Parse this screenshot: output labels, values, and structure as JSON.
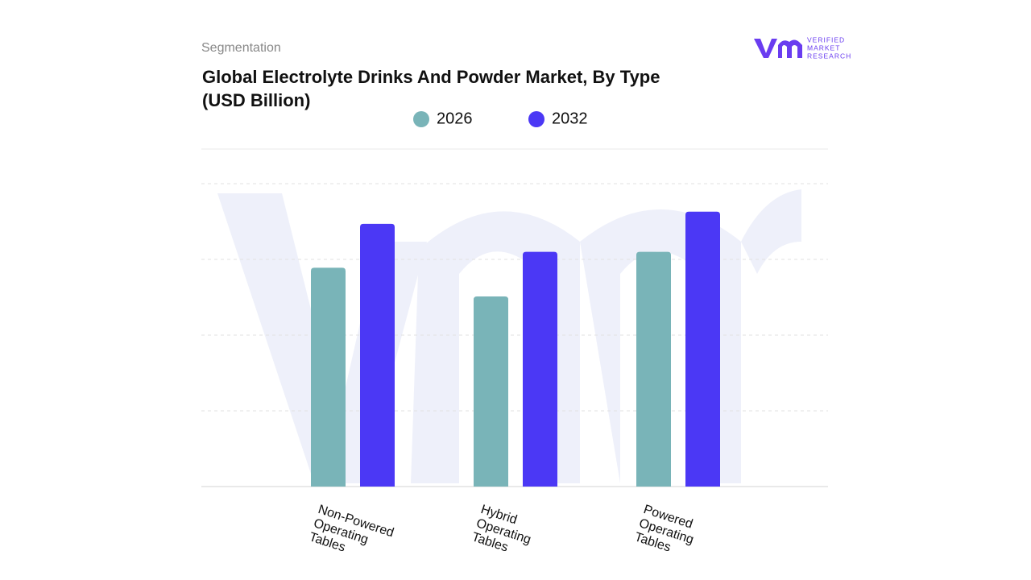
{
  "header": {
    "section": "Segmentation",
    "logo_line1": "VERIFIED",
    "logo_line2": "MARKET",
    "logo_line3": "RESEARCH"
  },
  "chart_data": {
    "type": "bar",
    "title": "Global Electrolyte Drinks And Powder Market, By Type (USD Billion)",
    "categories": [
      "Non-Powered Operating Tables",
      "Hybrid Operating Tables",
      "Powered Operating Tables"
    ],
    "series": [
      {
        "name": "2026",
        "color": "#79b4b8",
        "values": [
          2.89,
          2.51,
          3.1
        ]
      },
      {
        "name": "2032",
        "color": "#4b38f5",
        "values": [
          3.47,
          3.1,
          3.63
        ]
      }
    ],
    "ylim": [
      0,
      4.5
    ],
    "yticks": [
      1,
      2,
      3,
      4
    ],
    "grid": true
  }
}
